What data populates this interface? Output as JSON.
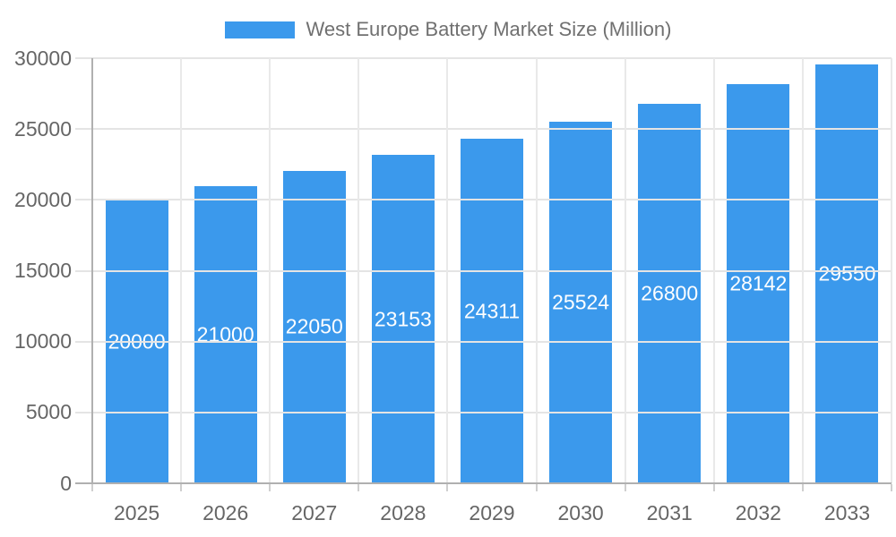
{
  "chart_data": {
    "type": "bar",
    "title": "West Europe Battery Market Size (Million)",
    "categories": [
      "2025",
      "2026",
      "2027",
      "2028",
      "2029",
      "2030",
      "2031",
      "2032",
      "2033"
    ],
    "series": [
      {
        "name": "West Europe Battery Market Size (Million)",
        "values": [
          20000,
          21000,
          22050,
          23153,
          24311,
          25524,
          26800,
          28142,
          29550
        ]
      }
    ],
    "xlabel": "",
    "ylabel": "",
    "ylim": [
      0,
      30000
    ],
    "y_ticks": [
      0,
      5000,
      10000,
      15000,
      20000,
      25000,
      30000
    ],
    "grid": true,
    "legend_position": "top",
    "value_label_position": "inside-center"
  },
  "legend": {
    "label": "West Europe Battery Market Size (Million)"
  },
  "colors": {
    "bar": "#3B99EC",
    "axis_line": "#B0B0B0",
    "h_gridline": "#E4E4E4",
    "v_gridline": "#E9E9E9",
    "tick": "#CFCFCF",
    "axis_text": "#666666",
    "legend_text": "#707070",
    "value_label_text": "#FFFFFF",
    "background": "#FFFFFF"
  }
}
